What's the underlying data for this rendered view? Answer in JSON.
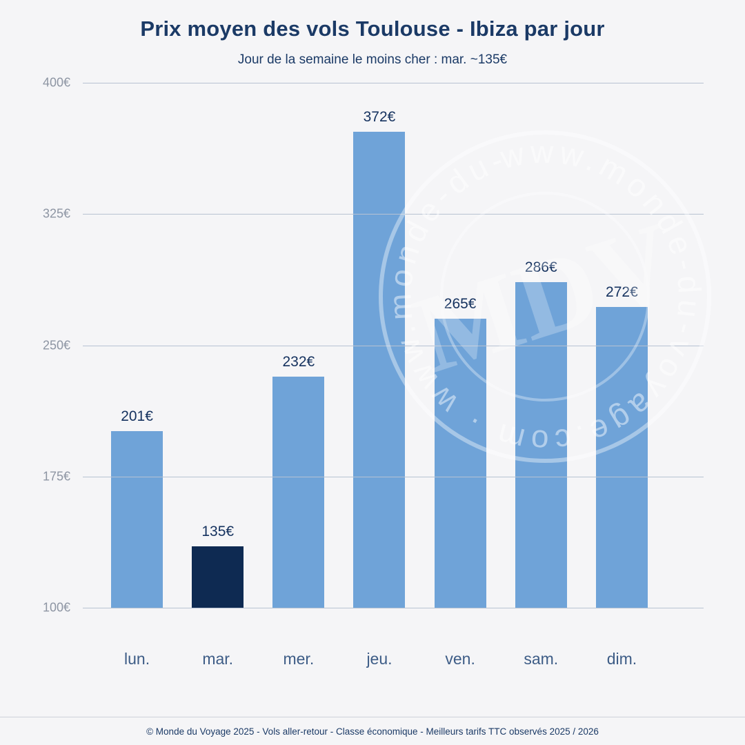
{
  "title": "Prix moyen des vols Toulouse - Ibiza par jour",
  "subtitle": "Jour de la semaine le moins cher : mar. ~135€",
  "footer": "© Monde du Voyage 2025 - Vols aller-retour - Classe économique - Meilleurs tarifs TTC observés 2025 / 2026",
  "watermark": {
    "ring_text": "www.monde-du-voyage.com · www.monde-du-voyage.com ·",
    "center_text": "MDV"
  },
  "colors": {
    "bar": "#6fa3d8",
    "bar_highlight": "#0e2a52",
    "gridline": "#b7c2d2",
    "title": "#1b3a66"
  },
  "chart_data": {
    "type": "bar",
    "title": "Prix moyen des vols Toulouse - Ibiza par jour",
    "subtitle": "Jour de la semaine le moins cher : mar. ~135€",
    "categories": [
      "lun.",
      "mar.",
      "mer.",
      "jeu.",
      "ven.",
      "sam.",
      "dim."
    ],
    "values": [
      201,
      135,
      232,
      372,
      265,
      286,
      272
    ],
    "value_labels": [
      "201€",
      "135€",
      "232€",
      "372€",
      "265€",
      "286€",
      "272€"
    ],
    "highlight_index": 1,
    "highlight_reason": "cheapest day",
    "ylim": [
      100,
      400
    ],
    "yticks": [
      400,
      325,
      250,
      175,
      100
    ],
    "ytick_labels": [
      "400€",
      "325€",
      "250€",
      "175€",
      "100€"
    ],
    "grid": true,
    "legend": false,
    "xlabel": "",
    "ylabel": ""
  }
}
